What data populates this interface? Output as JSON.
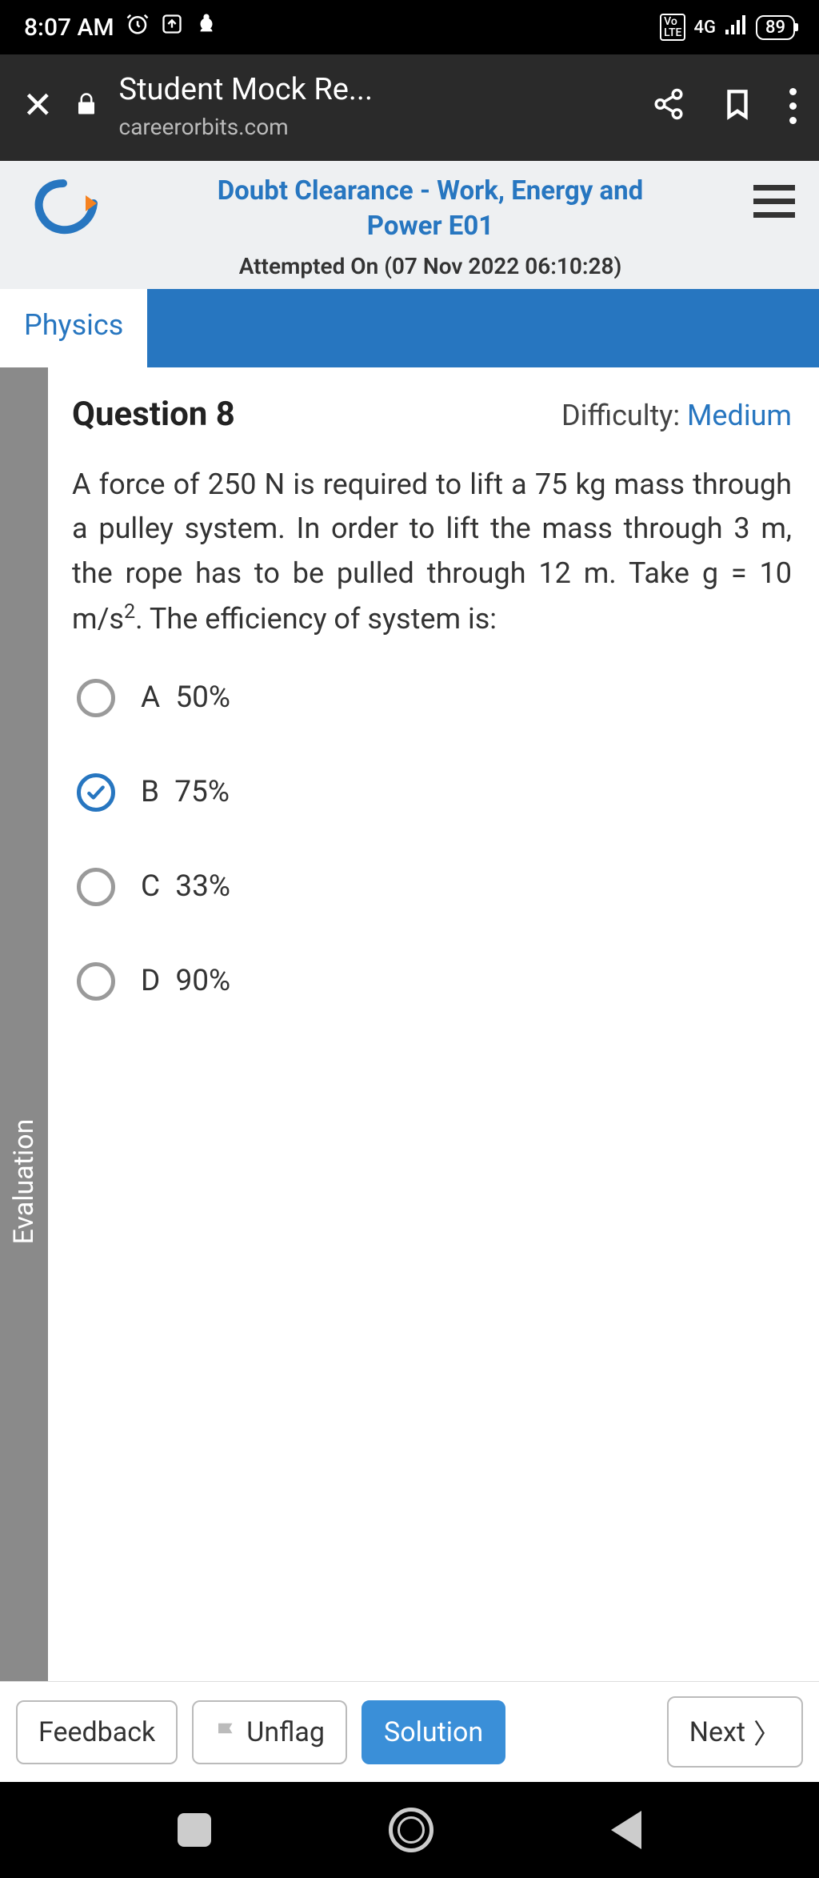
{
  "status": {
    "time": "8:07 AM",
    "network": "4G",
    "lte": "LTE",
    "vo": "Vo",
    "battery": "89"
  },
  "browser": {
    "title": "Student Mock Re...",
    "domain": "careerorbits.com"
  },
  "header": {
    "title_line1": "Doubt Clearance - Work, Energy and",
    "title_line2": "Power E01",
    "attempted": "Attempted On (07 Nov 2022 06:10:28)"
  },
  "tabs": {
    "active": "Physics"
  },
  "sidebar": {
    "label": "Evaluation"
  },
  "question": {
    "title": "Question 8",
    "difficulty_label": "Difficulty: ",
    "difficulty_value": "Medium",
    "text_p1": "A force of 250 N is required to lift a 75 kg mass through a pulley system. In order to lift the mass through 3 m, the rope has to be pulled through 12 m. Take g = 10 m/s",
    "text_sup": "2",
    "text_p2": ". The efficiency of system is:",
    "options": [
      {
        "letter": "A",
        "text": "50%",
        "selected": false
      },
      {
        "letter": "B",
        "text": "75%",
        "selected": true
      },
      {
        "letter": "C",
        "text": "33%",
        "selected": false
      },
      {
        "letter": "D",
        "text": "90%",
        "selected": false
      }
    ]
  },
  "buttons": {
    "feedback": "Feedback",
    "unflag": "Unflag",
    "solution": "Solution",
    "next": "Next"
  },
  "colors": {
    "accent": "#2776c0",
    "tab_bg": "#2776c0",
    "solution_btn": "#3a8fd8",
    "rail": "#8a8a8a"
  }
}
